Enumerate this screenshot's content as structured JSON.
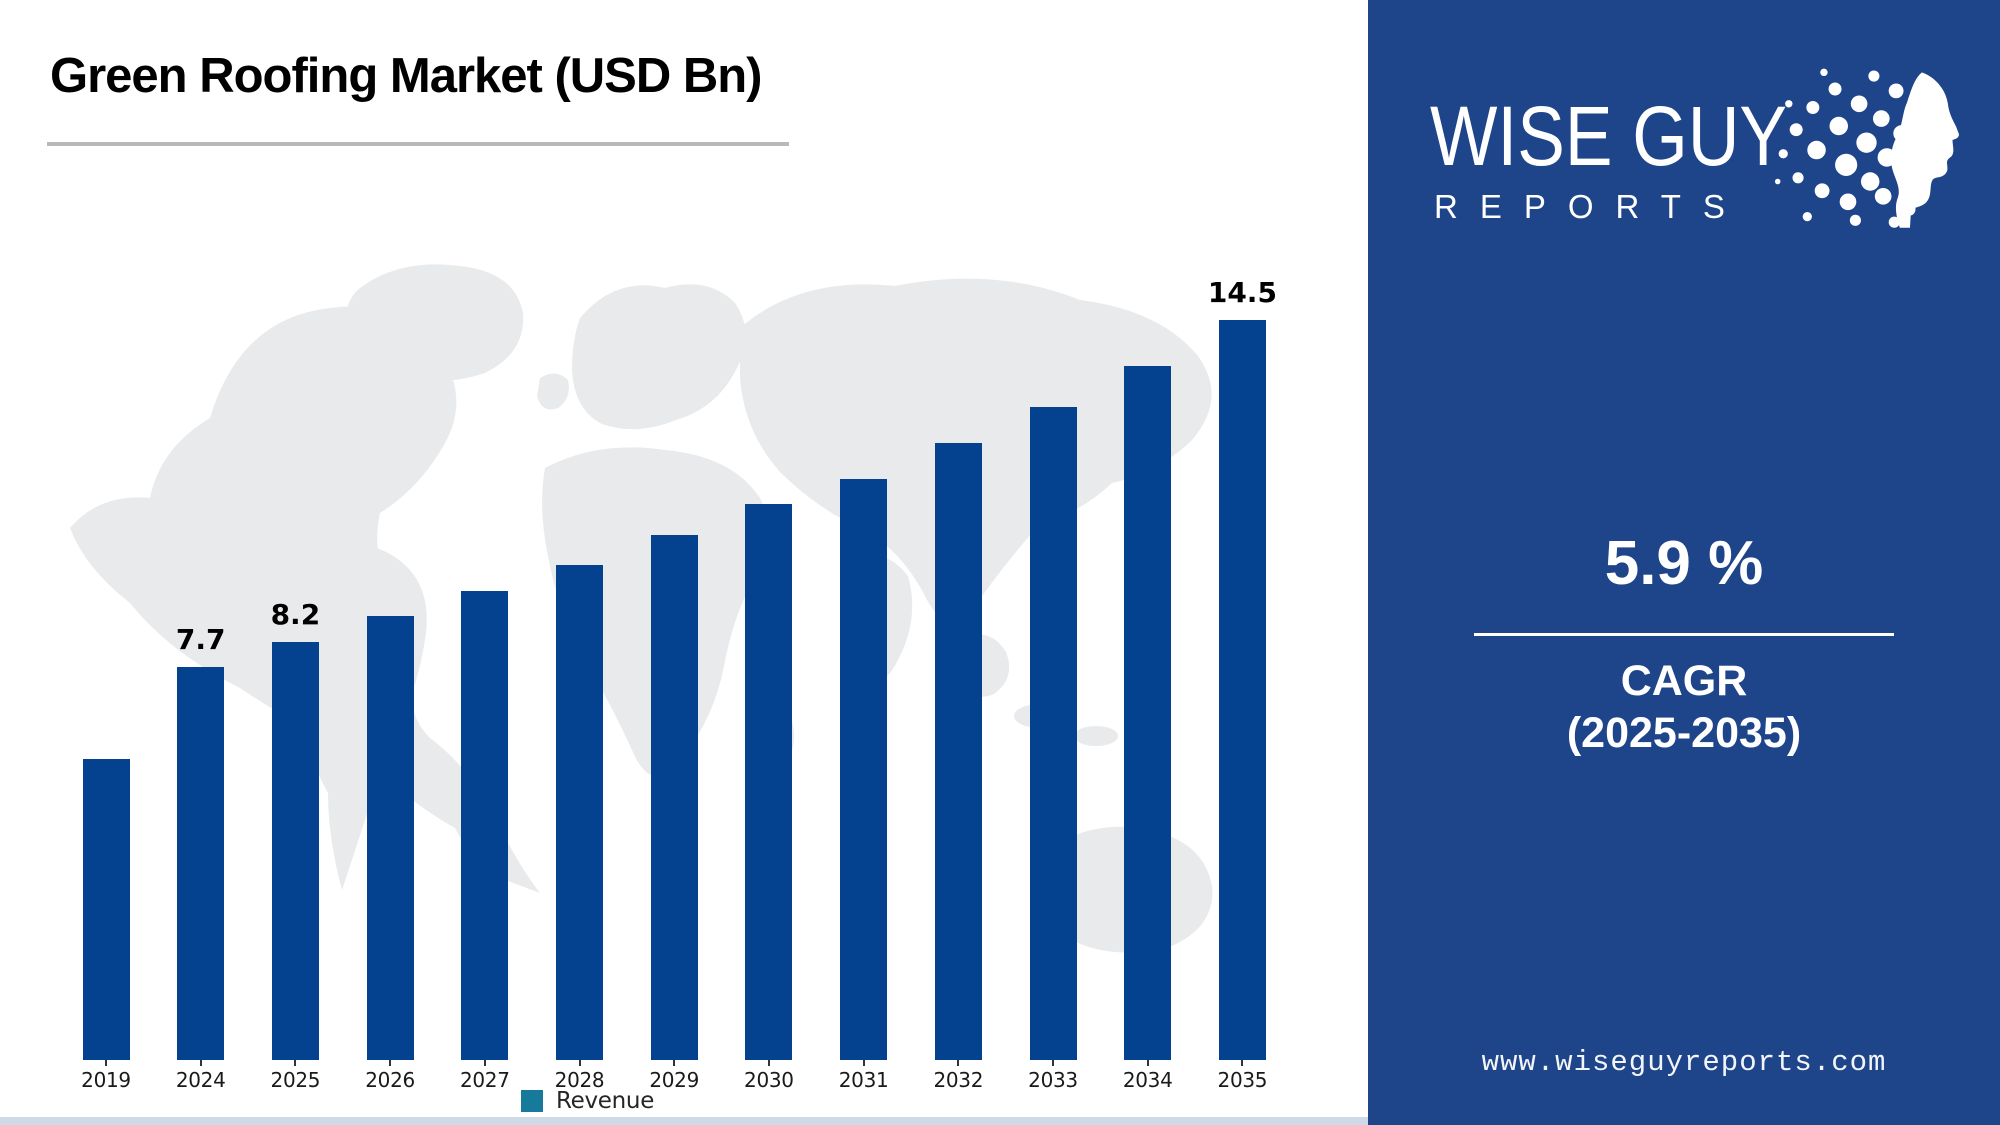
{
  "title": "Green Roofing Market (USD Bn)",
  "chart_data": {
    "type": "bar",
    "title": "Green Roofing Market (USD Bn)",
    "unit": "USD Bn",
    "categories": [
      "2019",
      "2024",
      "2025",
      "2026",
      "2027",
      "2028",
      "2029",
      "2030",
      "2031",
      "2032",
      "2033",
      "2034",
      "2035"
    ],
    "series": [
      {
        "name": "Revenue",
        "values": [
          5.9,
          7.7,
          8.2,
          8.7,
          9.2,
          9.7,
          10.3,
          10.9,
          11.4,
          12.1,
          12.8,
          13.6,
          14.5
        ]
      }
    ],
    "data_labels": [
      "",
      "7.7",
      "8.2",
      "",
      "",
      "",
      "",
      "",
      "",
      "",
      "",
      "",
      "14.5"
    ],
    "ylim": [
      0,
      16
    ],
    "grid": false,
    "legend": {
      "label": "Revenue",
      "position": "bottom"
    }
  },
  "sidebar": {
    "logo_line1": "WISE GUY",
    "logo_line2": "REPORTS",
    "cagr_value": "5.9 %",
    "cagr_label_line1": "CAGR",
    "cagr_label_line2": "(2025-2035)",
    "website": "www.wiseguyreports.com"
  },
  "colors": {
    "bar": "#04418f",
    "sidebar_background": "#1e4489",
    "legend_swatch": "#177a9b",
    "map_land": "#e8eaec",
    "bottom_strip": "#cfdae8",
    "title_underline": "#b9b9b9"
  }
}
